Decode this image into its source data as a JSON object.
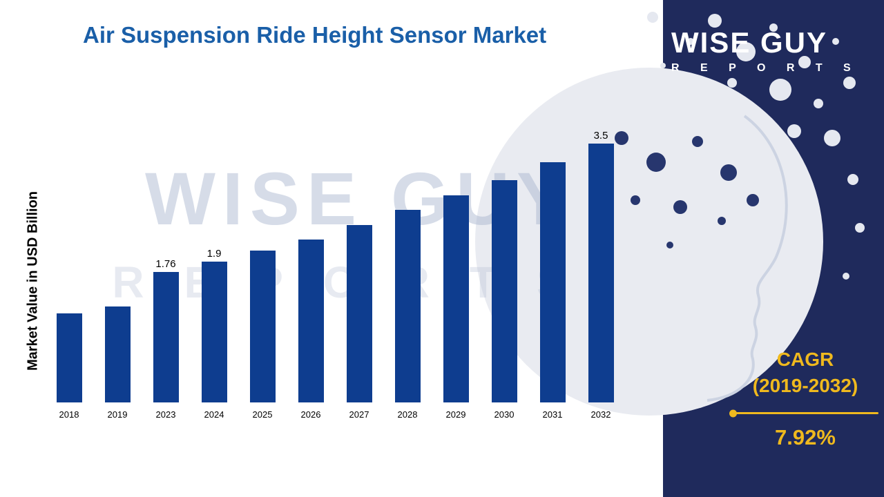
{
  "title": "Air Suspension Ride Height Sensor Market",
  "watermark": {
    "line1": "WISE GUY",
    "line2": "REPORTS"
  },
  "logo": {
    "line1": "WISE GUY",
    "line2": "R E P O R T S"
  },
  "cagr": {
    "label": "CAGR",
    "range": "(2019-2032)",
    "value": "7.92%"
  },
  "colors": {
    "title_blue": "#1a5fa8",
    "bar_blue": "#0e3d8f",
    "panel_navy": "#1f2a5c",
    "accent_yellow": "#efb91e"
  },
  "chart_data": {
    "type": "bar",
    "title": "Air Suspension Ride Height Sensor Market",
    "categories": [
      "2018",
      "2019",
      "2023",
      "2024",
      "2025",
      "2026",
      "2027",
      "2028",
      "2029",
      "2030",
      "2031",
      "2032"
    ],
    "values": [
      1.2,
      1.3,
      1.76,
      1.9,
      2.05,
      2.2,
      2.4,
      2.6,
      2.8,
      3.0,
      3.25,
      3.5
    ],
    "bar_labels": [
      "",
      "",
      "1.76",
      "1.9",
      "",
      "",
      "",
      "",
      "",
      "",
      "",
      "3.5"
    ],
    "xlabel": "",
    "ylabel": "Market Value in USD Billion",
    "ylim": [
      0,
      3.9
    ],
    "grid": false,
    "legend": "none",
    "bar_color": "#0e3d8f"
  }
}
